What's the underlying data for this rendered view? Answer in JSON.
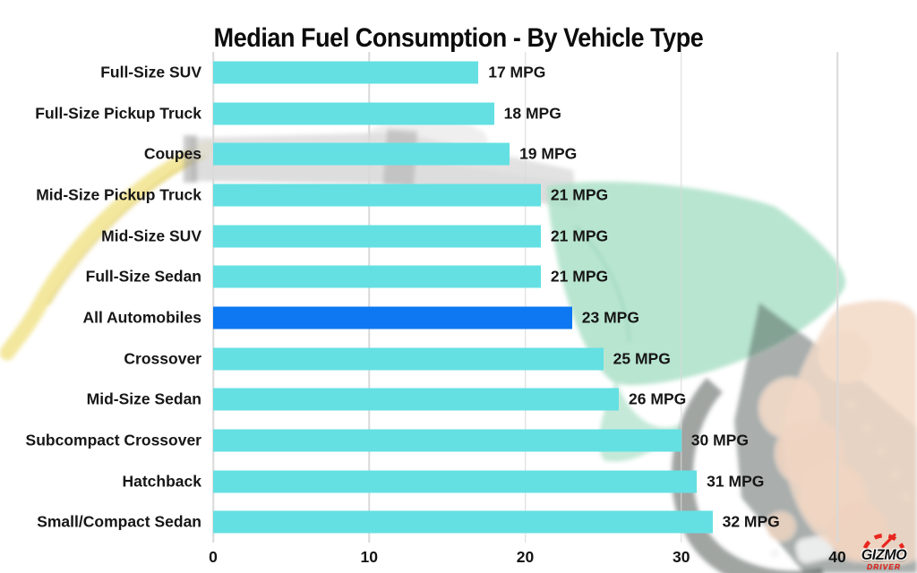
{
  "chart_data": {
    "type": "bar",
    "orientation": "horizontal",
    "title": "Median Fuel Consumption - By Vehicle Type",
    "unit": "MPG",
    "categories": [
      "Full-Size SUV",
      "Full-Size Pickup Truck",
      "Coupes",
      "Mid-Size Pickup Truck",
      "Mid-Size SUV",
      "Full-Size Sedan",
      "All Automobiles",
      "Crossover",
      "Mid-Size Sedan",
      "Subcompact Crossover",
      "Hatchback",
      "Small/Compact Sedan"
    ],
    "values": [
      17,
      18,
      19,
      21,
      21,
      21,
      23,
      25,
      26,
      30,
      31,
      32
    ],
    "value_labels": [
      "17 MPG",
      "18 MPG",
      "19 MPG",
      "21 MPG",
      "21 MPG",
      "21 MPG",
      "23 MPG",
      "25 MPG",
      "26 MPG",
      "30 MPG",
      "31 MPG",
      "32 MPG"
    ],
    "highlight_category": "All Automobiles",
    "highlight_index": 6,
    "xlim": [
      0,
      40
    ],
    "x_ticks": [
      0,
      10,
      20,
      30,
      40
    ],
    "grid": "vertical-gridlines-on",
    "legend": "none",
    "bar_color": "#64e0e3",
    "highlight_color": "#0d78f2",
    "gridline_color": "#d9d9d9",
    "text_color": "#161616"
  },
  "logo": {
    "brand": "GIZMO",
    "sub": "DRIVER",
    "accent_color": "#e8261f"
  },
  "background": {
    "photo": "hand-holding-green-fuel-pump-nozzle-with-yellow-fuel-stream"
  }
}
